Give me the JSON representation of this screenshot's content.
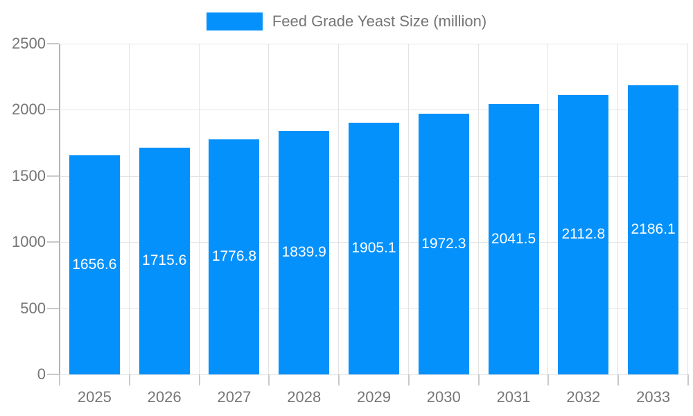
{
  "legend": {
    "label": "Feed Grade Yeast Size (million)",
    "swatch_color": "#0591fb"
  },
  "chart_data": {
    "type": "bar",
    "title": "Feed Grade Yeast Size (million)",
    "categories": [
      "2025",
      "2026",
      "2027",
      "2028",
      "2029",
      "2030",
      "2031",
      "2032",
      "2033"
    ],
    "values": [
      1656.6,
      1715.6,
      1776.8,
      1839.9,
      1905.1,
      1972.3,
      2041.5,
      2112.8,
      2186.1
    ],
    "value_labels": [
      "1656.6",
      "1715.6",
      "1776.8",
      "1839.9",
      "1905.1",
      "1972.3",
      "2041.5",
      "2112.8",
      "2186.1"
    ],
    "xlabel": "",
    "ylabel": "",
    "ylim": [
      0,
      2500
    ],
    "yticks": [
      0,
      500,
      1000,
      1500,
      2000,
      2500
    ],
    "grid": true,
    "legend_position": "top",
    "bar_color": "#0591fb",
    "value_label_color": "#ffffff",
    "axis_text_color": "#757575"
  }
}
